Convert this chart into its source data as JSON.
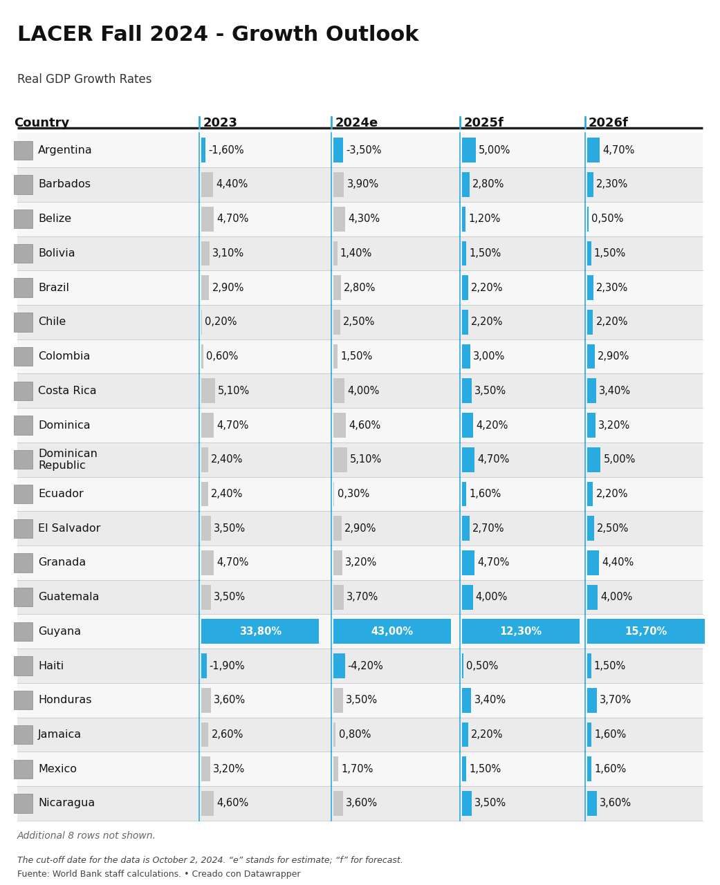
{
  "title": "LACER Fall 2024 - Growth Outlook",
  "subtitle": "Real GDP Growth Rates",
  "columns": [
    "Country",
    "2023",
    "2024e",
    "2025f",
    "2026f"
  ],
  "footer_note": "The cut-off date for the data is October 2, 2024. “e” stands for estimate; “f” for forecast.",
  "footer_source": "Fuente: World Bank staff calculations. • Creado con Datawrapper",
  "additional_note": "Additional 8 rows not shown.",
  "countries": [
    "Argentina",
    "Barbados",
    "Belize",
    "Bolivia",
    "Brazil",
    "Chile",
    "Colombia",
    "Costa Rica",
    "Dominica",
    "Dominican\nRepublic",
    "Ecuador",
    "El Salvador",
    "Granada",
    "Guatemala",
    "Guyana",
    "Haiti",
    "Honduras",
    "Jamaica",
    "Mexico",
    "Nicaragua"
  ],
  "values_2023": [
    -1.6,
    4.4,
    4.7,
    3.1,
    2.9,
    0.2,
    0.6,
    5.1,
    4.7,
    2.4,
    2.4,
    3.5,
    4.7,
    3.5,
    33.8,
    -1.9,
    3.6,
    2.6,
    3.2,
    4.6
  ],
  "values_2024e": [
    -3.5,
    3.9,
    4.3,
    1.4,
    2.8,
    2.5,
    1.5,
    4.0,
    4.6,
    5.1,
    0.3,
    2.9,
    3.2,
    3.7,
    43.0,
    -4.2,
    3.5,
    0.8,
    1.7,
    3.6
  ],
  "values_2025f": [
    5.0,
    2.8,
    1.2,
    1.5,
    2.2,
    2.2,
    3.0,
    3.5,
    4.2,
    4.7,
    1.6,
    2.7,
    4.7,
    4.0,
    12.3,
    0.5,
    3.4,
    2.2,
    1.5,
    3.5
  ],
  "values_2026f": [
    4.7,
    2.3,
    0.5,
    1.5,
    2.3,
    2.2,
    2.9,
    3.4,
    3.2,
    5.0,
    2.2,
    2.5,
    4.4,
    4.0,
    15.7,
    1.5,
    3.7,
    1.6,
    1.6,
    3.6
  ],
  "labels_2023": [
    "-1,60%",
    "4,40%",
    "4,70%",
    "3,10%",
    "2,90%",
    "0,20%",
    "0,60%",
    "5,10%",
    "4,70%",
    "2,40%",
    "2,40%",
    "3,50%",
    "4,70%",
    "3,50%",
    "33,80%",
    "-1,90%",
    "3,60%",
    "2,60%",
    "3,20%",
    "4,60%"
  ],
  "labels_2024e": [
    "-3,50%",
    "3,90%",
    "4,30%",
    "1,40%",
    "2,80%",
    "2,50%",
    "1,50%",
    "4,00%",
    "4,60%",
    "5,10%",
    "0,30%",
    "2,90%",
    "3,20%",
    "3,70%",
    "43,00%",
    "-4,20%",
    "3,50%",
    "0,80%",
    "1,70%",
    "3,60%"
  ],
  "labels_2025f": [
    "5,00%",
    "2,80%",
    "1,20%",
    "1,50%",
    "2,20%",
    "2,20%",
    "3,00%",
    "3,50%",
    "4,20%",
    "4,70%",
    "1,60%",
    "2,70%",
    "4,70%",
    "4,00%",
    "12,30%",
    "0,50%",
    "3,40%",
    "2,20%",
    "1,50%",
    "3,50%"
  ],
  "labels_2026f": [
    "4,70%",
    "2,30%",
    "0,50%",
    "1,50%",
    "2,30%",
    "2,20%",
    "2,90%",
    "3,40%",
    "3,20%",
    "5,00%",
    "2,20%",
    "2,50%",
    "4,40%",
    "4,00%",
    "15,70%",
    "1,50%",
    "3,70%",
    "1,60%",
    "1,60%",
    "3,60%"
  ],
  "bar_color": "#29ABE2",
  "bar_color_gray": "#C8C8C8",
  "bg_color": "#FFFFFF",
  "row_bg_even": "#EBEBEB",
  "row_bg_odd": "#F7F7F7",
  "title_fontsize": 22,
  "subtitle_fontsize": 12,
  "col_header_fontsize": 13,
  "cell_fontsize": 10.5,
  "country_fontsize": 11.5
}
